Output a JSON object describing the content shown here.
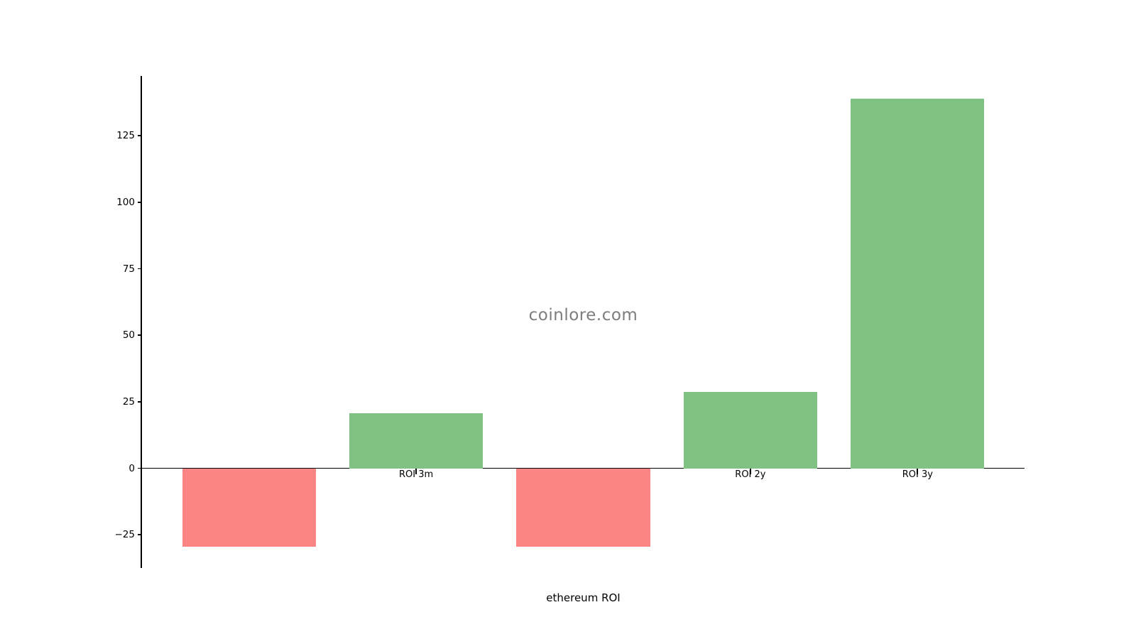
{
  "chart_data": {
    "type": "bar",
    "title": "",
    "xlabel": "ethereum ROI",
    "ylabel": "",
    "watermark": "coinlore.com",
    "categories": [
      null,
      "ROI 3m",
      null,
      "ROI 2y",
      "ROI 3y"
    ],
    "values": [
      -29.3,
      20.8,
      -29.3,
      28.7,
      139
    ],
    "bar_colors": [
      "#fb8585",
      "#7fc283",
      "#fb8585",
      "#7fc283",
      "#7fc283"
    ],
    "y_ticks": [
      {
        "label": "125",
        "value": 125
      },
      {
        "label": "100",
        "value": 100
      },
      {
        "label": "75",
        "value": 75
      },
      {
        "label": "50",
        "value": 50
      },
      {
        "label": "25",
        "value": 25
      },
      {
        "label": "0",
        "value": 0
      },
      {
        "label": "−25",
        "value": -25
      }
    ],
    "ylim": [
      -37.5,
      147.5
    ],
    "xlim": [
      -0.64,
      4.64
    ],
    "bar_width": 0.8,
    "grid": false,
    "legend_position": "none",
    "colors": {
      "positive": "#7fc283",
      "negative": "#fb8585",
      "axis": "#000000",
      "watermark": "#7d7d7d",
      "background": "#ffffff"
    }
  }
}
